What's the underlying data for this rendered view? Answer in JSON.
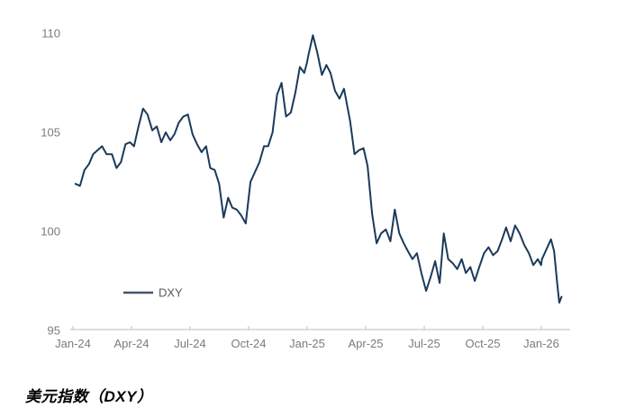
{
  "caption": "美元指数（DXY）",
  "colors": {
    "line": "#1b3a5a",
    "legend_line": "#44546a",
    "axis": "#d2d2d2",
    "tick_label": "#7b7b7b",
    "background": "#ffffff"
  },
  "chart_data": {
    "type": "line",
    "title": "",
    "xlabel": "",
    "ylabel": "",
    "grid": false,
    "legend_position": "inside-bottom-left",
    "ylim": [
      95,
      110
    ],
    "yticks": [
      110,
      105,
      100,
      95
    ],
    "xticks": [
      "Jan-24",
      "Apr-24",
      "Jul-24",
      "Oct-24",
      "Jan-25",
      "Apr-25",
      "Jul-25",
      "Oct-25",
      "Jan-26"
    ],
    "series": [
      {
        "name": "DXY",
        "color": "#1b3a5a",
        "dates": [
          "2024-01-05",
          "2024-01-12",
          "2024-01-19",
          "2024-01-26",
          "2024-02-02",
          "2024-02-09",
          "2024-02-16",
          "2024-02-23",
          "2024-03-01",
          "2024-03-08",
          "2024-03-15",
          "2024-03-22",
          "2024-03-29",
          "2024-04-05",
          "2024-04-12",
          "2024-04-19",
          "2024-04-26",
          "2024-05-03",
          "2024-05-10",
          "2024-05-17",
          "2024-05-24",
          "2024-05-31",
          "2024-06-07",
          "2024-06-14",
          "2024-06-21",
          "2024-06-28",
          "2024-07-05",
          "2024-07-12",
          "2024-07-19",
          "2024-07-26",
          "2024-08-02",
          "2024-08-09",
          "2024-08-16",
          "2024-08-23",
          "2024-08-30",
          "2024-09-06",
          "2024-09-13",
          "2024-09-20",
          "2024-09-27",
          "2024-10-04",
          "2024-10-11",
          "2024-10-18",
          "2024-10-25",
          "2024-11-01",
          "2024-11-08",
          "2024-11-15",
          "2024-11-22",
          "2024-11-29",
          "2024-12-06",
          "2024-12-13",
          "2024-12-20",
          "2024-12-27",
          "2024-12-31",
          "2025-01-03",
          "2025-01-10",
          "2025-01-17",
          "2025-01-24",
          "2025-01-31",
          "2025-02-07",
          "2025-02-14",
          "2025-02-21",
          "2025-02-28",
          "2025-03-07",
          "2025-03-14",
          "2025-03-21",
          "2025-03-28",
          "2025-04-04",
          "2025-04-11",
          "2025-04-18",
          "2025-04-25",
          "2025-05-02",
          "2025-05-09",
          "2025-05-16",
          "2025-05-23",
          "2025-05-30",
          "2025-06-06",
          "2025-06-13",
          "2025-06-20",
          "2025-06-27",
          "2025-07-04",
          "2025-07-11",
          "2025-07-18",
          "2025-07-25",
          "2025-08-01",
          "2025-08-08",
          "2025-08-15",
          "2025-08-22",
          "2025-08-29",
          "2025-09-05",
          "2025-09-12",
          "2025-09-19",
          "2025-09-26",
          "2025-10-03",
          "2025-10-10",
          "2025-10-17",
          "2025-10-24",
          "2025-10-31",
          "2025-11-07",
          "2025-11-14",
          "2025-11-21",
          "2025-11-28",
          "2025-12-05",
          "2025-12-12",
          "2025-12-19",
          "2025-12-26",
          "2025-12-31",
          "2026-01-02",
          "2026-01-09",
          "2026-01-16",
          "2026-01-21",
          "2026-01-26",
          "2026-01-29",
          "2026-02-02"
        ],
        "values": [
          102.4,
          102.3,
          103.1,
          103.4,
          103.9,
          104.1,
          104.3,
          103.9,
          103.9,
          103.2,
          103.5,
          104.4,
          104.5,
          104.3,
          105.3,
          106.2,
          105.9,
          105.1,
          105.3,
          104.5,
          105.0,
          104.6,
          104.9,
          105.5,
          105.8,
          105.9,
          104.9,
          104.4,
          104.0,
          104.3,
          103.2,
          103.1,
          102.4,
          100.7,
          101.7,
          101.2,
          101.1,
          100.8,
          100.4,
          102.5,
          103.0,
          103.5,
          104.3,
          104.3,
          105.0,
          106.9,
          107.5,
          105.8,
          106.0,
          107.0,
          108.3,
          108.0,
          108.5,
          108.9,
          109.9,
          109.0,
          107.9,
          108.4,
          108.0,
          107.1,
          106.7,
          107.2,
          105.6,
          103.9,
          104.1,
          104.2,
          103.3,
          100.9,
          99.4,
          99.9,
          100.1,
          99.5,
          101.1,
          99.9,
          99.4,
          99.0,
          98.6,
          98.9,
          97.9,
          97.0,
          97.7,
          98.5,
          97.4,
          99.9,
          98.6,
          98.4,
          98.1,
          98.6,
          97.9,
          98.2,
          97.5,
          98.2,
          98.9,
          99.2,
          98.8,
          99.0,
          99.6,
          100.2,
          99.5,
          100.3,
          99.9,
          99.3,
          98.9,
          98.3,
          98.6,
          98.3,
          98.6,
          99.1,
          99.6,
          99.0,
          97.3,
          96.4,
          96.7
        ]
      }
    ]
  }
}
